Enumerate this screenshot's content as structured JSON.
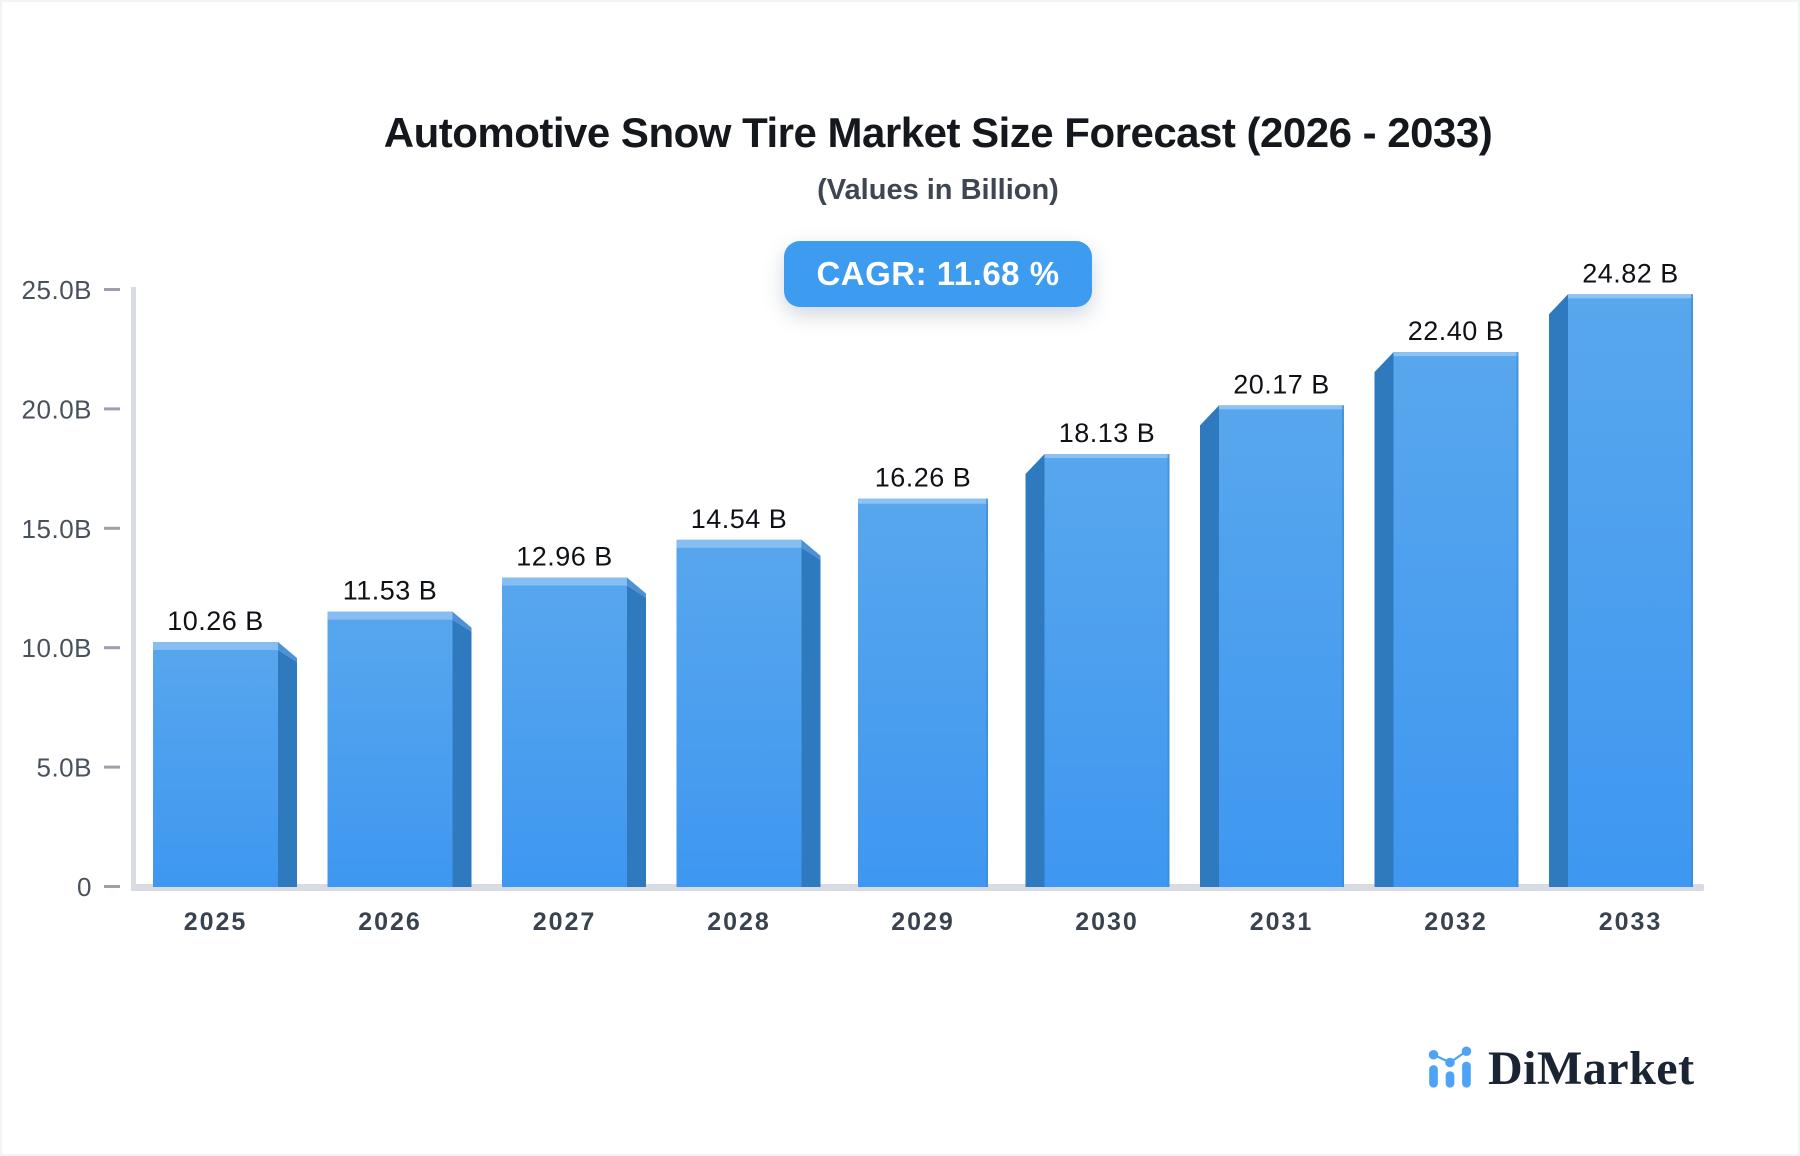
{
  "title": "Automotive Snow Tire Market Size Forecast (2026 - 2033)",
  "subtitle": "(Values in Billion)",
  "badge": {
    "label": "CAGR: 11.68 %"
  },
  "logo": {
    "text": "DiMarket",
    "icon": "bar-chart-logo-icon",
    "icon_color": "#4da3f5",
    "text_color": "#1a2433"
  },
  "chart_data": {
    "type": "bar",
    "title": "Automotive Snow Tire Market Size Forecast (2026 - 2033)",
    "subtitle": "(Values in Billion)",
    "categories": [
      "2025",
      "2026",
      "2027",
      "2028",
      "2029",
      "2030",
      "2031",
      "2032",
      "2033"
    ],
    "values": [
      10.26,
      11.53,
      12.96,
      14.54,
      16.26,
      18.13,
      20.17,
      22.4,
      24.82
    ],
    "value_labels": [
      "10.26 B",
      "11.53 B",
      "12.96 B",
      "14.54 B",
      "16.26 B",
      "18.13 B",
      "20.17 B",
      "22.40 B",
      "24.82 B"
    ],
    "unit": "Billion",
    "xlabel": "",
    "ylabel": "",
    "ylim": [
      0,
      25
    ],
    "y_tick_values": [
      0,
      5,
      10,
      15,
      20,
      25
    ],
    "y_tick_labels": [
      "0",
      "5.0B",
      "10.0B",
      "15.0B",
      "20.0B",
      "25.0B"
    ],
    "grid": false,
    "legend": "none",
    "annotation": "CAGR: 11.68 %",
    "colors": {
      "bar_front_top": "#58a7ed",
      "bar_front_bottom": "#3e97f0",
      "bar_side": "#2f7abf",
      "bar_chamfer": "#4e92d6",
      "bar_top_band": "#86bdf3",
      "bar_top_edge": "#8cc2f5",
      "axis": "#d8dbe1",
      "tick_dash": "#9aa1ac",
      "tick_text": "#49515c",
      "year_text": "#39424f",
      "value_text": "#0e1116",
      "badge_bg": "#3d9bf0"
    }
  }
}
